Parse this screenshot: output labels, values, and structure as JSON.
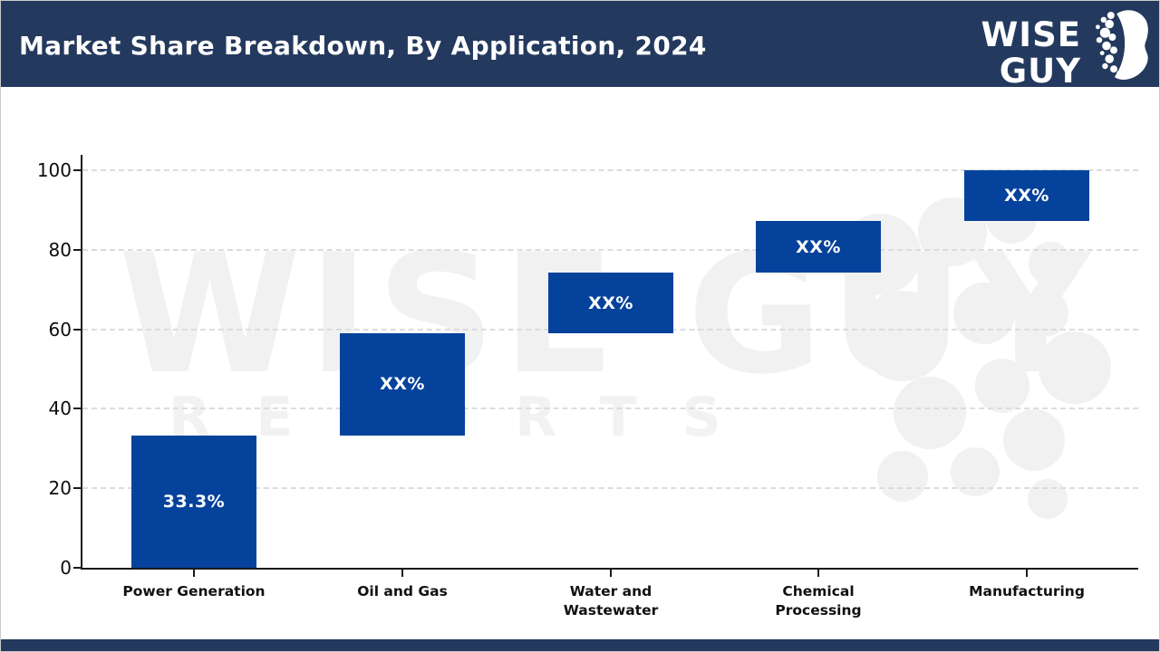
{
  "header": {
    "title": "Market Share Breakdown, By Application, 2024",
    "bg_color": "#24395e",
    "logo": {
      "wordmark": "WISE GUY",
      "reports": "REPORTS"
    }
  },
  "watermark": {
    "wordmark": "WISE GUY",
    "reports": "REPORTS"
  },
  "chart_data": {
    "type": "bar",
    "subtype": "waterfall",
    "title": "Market Share Breakdown, By Application, 2024",
    "xlabel": "",
    "ylabel": "",
    "ylim": [
      0,
      100
    ],
    "yticks": [
      0,
      20,
      40,
      60,
      80,
      100
    ],
    "grid": "horizontal-dashed",
    "legend": "none",
    "bar_color": "#05429b",
    "bar_label_color": "#ffffff",
    "categories": [
      "Power Generation",
      "Oil and Gas",
      "Water and\nWastewater",
      "Chemical\nProcessing",
      "Manufacturing"
    ],
    "segments": [
      {
        "category": "Power Generation",
        "start": 0,
        "end": 33.3,
        "label": "33.3%"
      },
      {
        "category": "Oil and Gas",
        "start": 33.3,
        "end": 59.0,
        "label": "XX%"
      },
      {
        "category": "Water and\nWastewater",
        "start": 59.0,
        "end": 74.2,
        "label": "XX%"
      },
      {
        "category": "Chemical\nProcessing",
        "start": 74.2,
        "end": 87.2,
        "label": "XX%"
      },
      {
        "category": "Manufacturing",
        "start": 87.2,
        "end": 100.0,
        "label": "XX%"
      }
    ]
  }
}
